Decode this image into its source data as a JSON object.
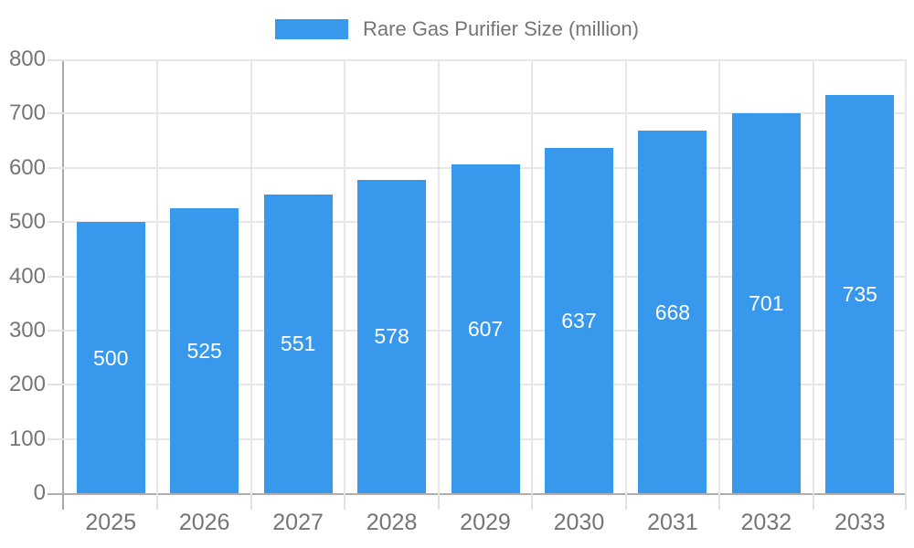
{
  "chart_data": {
    "type": "bar",
    "legend_label": "Rare Gas Purifier Size (million)",
    "categories": [
      "2025",
      "2026",
      "2027",
      "2028",
      "2029",
      "2030",
      "2031",
      "2032",
      "2033"
    ],
    "values": [
      500,
      525,
      551,
      578,
      607,
      637,
      668,
      701,
      735
    ],
    "series": [
      {
        "name": "Rare Gas Purifier Size (million)",
        "values": [
          500,
          525,
          551,
          578,
          607,
          637,
          668,
          701,
          735
        ]
      }
    ],
    "title": "",
    "xlabel": "",
    "ylabel": "",
    "ylim": [
      0,
      800
    ],
    "ytick_step": 100,
    "ytick_labels": [
      "0",
      "100",
      "200",
      "300",
      "400",
      "500",
      "600",
      "700",
      "800"
    ],
    "grid": "on",
    "legend_position": "top",
    "value_labels": "inside-center-white",
    "colors": {
      "bar": "#3898EC",
      "axis_text": "#757575",
      "bar_label_text": "#ffffff",
      "gridline": "#e7e7e7",
      "axis_line": "#aaaaaa"
    }
  }
}
